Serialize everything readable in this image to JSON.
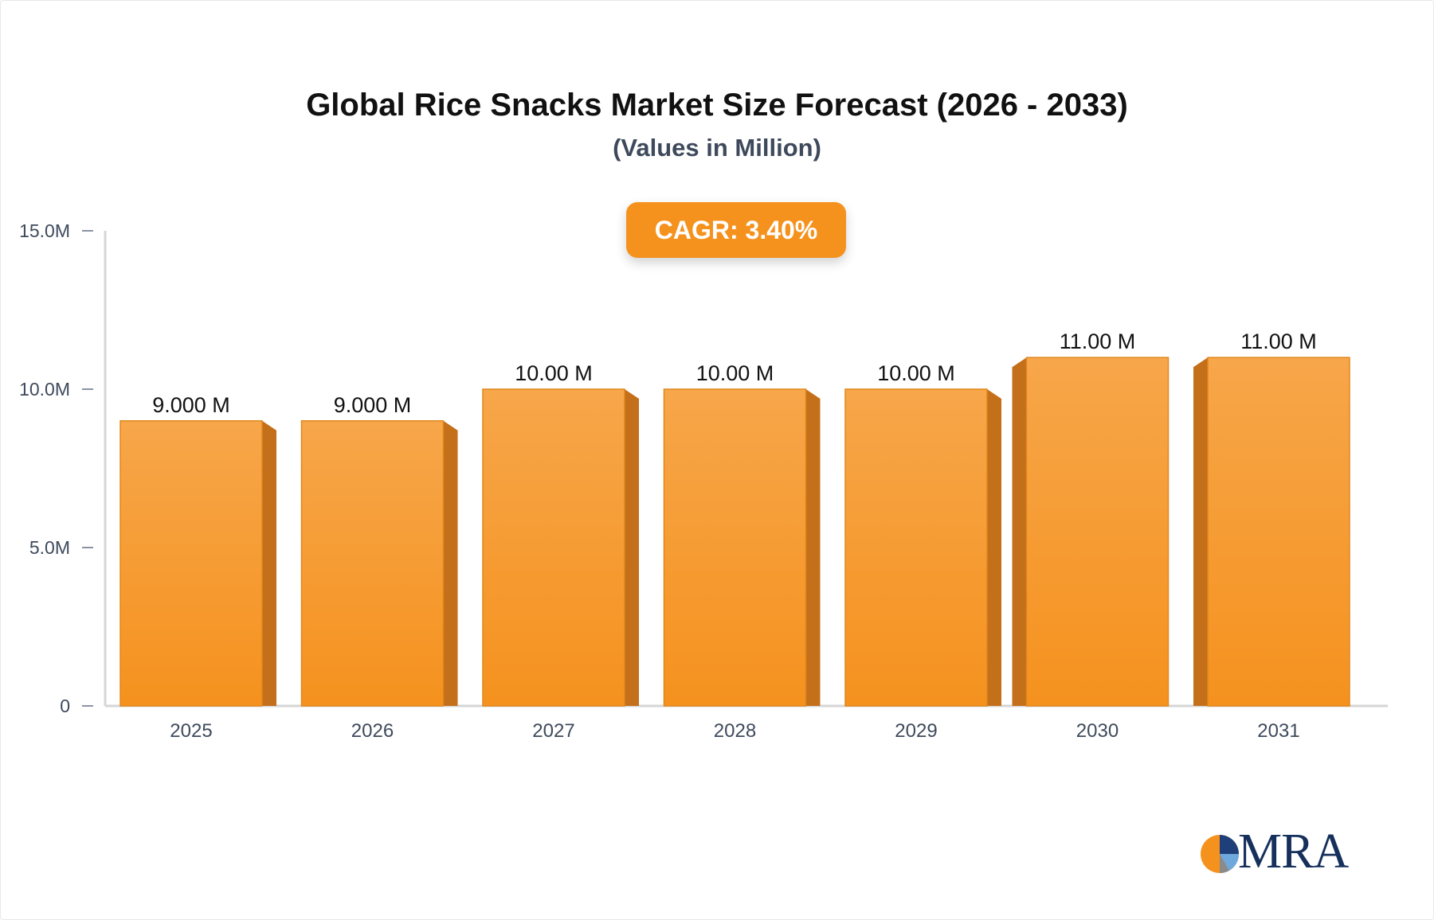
{
  "chart_data": {
    "type": "bar",
    "title": "Global Rice Snacks Market Size Forecast (2026 - 2033)",
    "subtitle": "(Values in Million)",
    "annotation": "CAGR: 3.40%",
    "categories": [
      "2025",
      "2026",
      "2027",
      "2028",
      "2029",
      "2030",
      "2031"
    ],
    "values": [
      9.0,
      9.0,
      10.0,
      10.0,
      10.0,
      11.0,
      11.0
    ],
    "data_labels": [
      "9.000 M",
      "9.000 M",
      "10.00 M",
      "10.00 M",
      "10.00 M",
      "11.00 M",
      "11.00 M"
    ],
    "yticks": [
      0,
      5,
      10,
      15
    ],
    "ytick_labels": [
      "0",
      "5.0M",
      "10.0M",
      "15.0M"
    ],
    "ylim": [
      0,
      15
    ],
    "xlabel": "",
    "ylabel": "",
    "grid": false,
    "legend": "none",
    "colors": {
      "bar_top": "#f7a64a",
      "bar_bottom": "#f5921e",
      "bar_side": "#c46f1a",
      "bar_outline": "#e0861c",
      "badge": "#f5921e",
      "axis": "#d6d6d6",
      "tick_text": "#3e4a5c",
      "label_text": "#111111"
    }
  },
  "logo": {
    "text": "MRA",
    "icon": "pie-logo-icon"
  }
}
